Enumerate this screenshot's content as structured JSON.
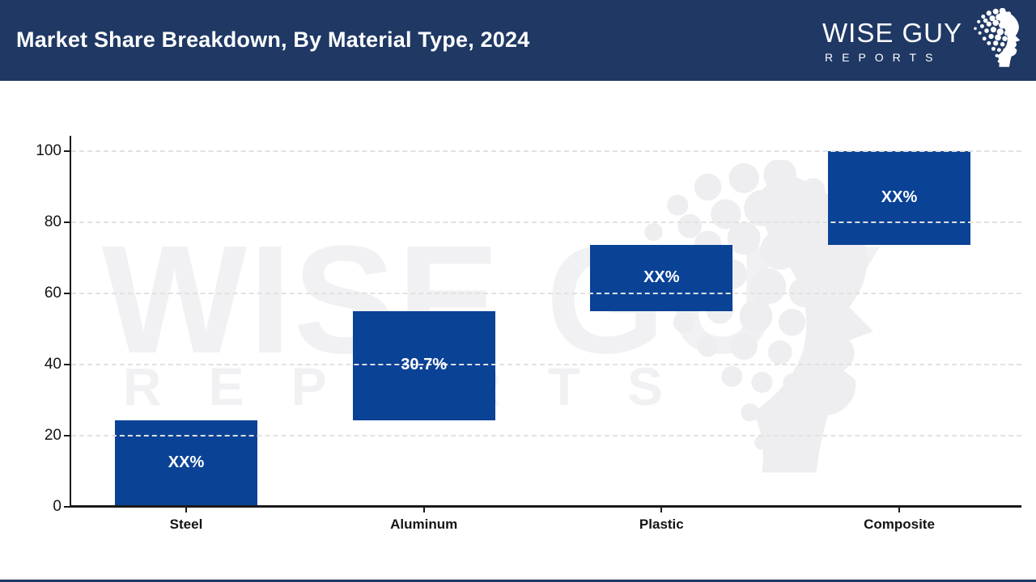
{
  "header": {
    "title": "Market Share Breakdown, By Material Type, 2024",
    "logo": {
      "wise_guy": "WISE GUY",
      "reports": "REPORTS"
    }
  },
  "watermark": {
    "line1": "WISE GUY",
    "line2": "REPORTS"
  },
  "chart_data": {
    "type": "waterfall",
    "title": "Market Share Breakdown, By Material Type, 2024",
    "categories": [
      "Steel",
      "Aluminum",
      "Plastic",
      "Composite"
    ],
    "segments": [
      {
        "category": "Steel",
        "start": 0,
        "end": 24.4,
        "label": "XX%"
      },
      {
        "category": "Aluminum",
        "start": 24.4,
        "end": 55.1,
        "label": "30.7%"
      },
      {
        "category": "Plastic",
        "start": 55.1,
        "end": 73.6,
        "label": "XX%"
      },
      {
        "category": "Composite",
        "start": 73.6,
        "end": 100,
        "label": "XX%"
      }
    ],
    "ylim": [
      0,
      100
    ],
    "yticks": [
      0,
      20,
      40,
      60,
      80,
      100
    ],
    "grid": "horizontal-dashed",
    "legend": "none",
    "bar_color": "#0a4296",
    "bar_label_color": "#ffffff"
  },
  "colors": {
    "header_bg": "#1f3864",
    "bar": "#0a4296",
    "axis": "#1a1a1a",
    "grid": "#e1e1e1",
    "watermark": "#f1f1f3",
    "bottom_line": "#1f3864"
  }
}
